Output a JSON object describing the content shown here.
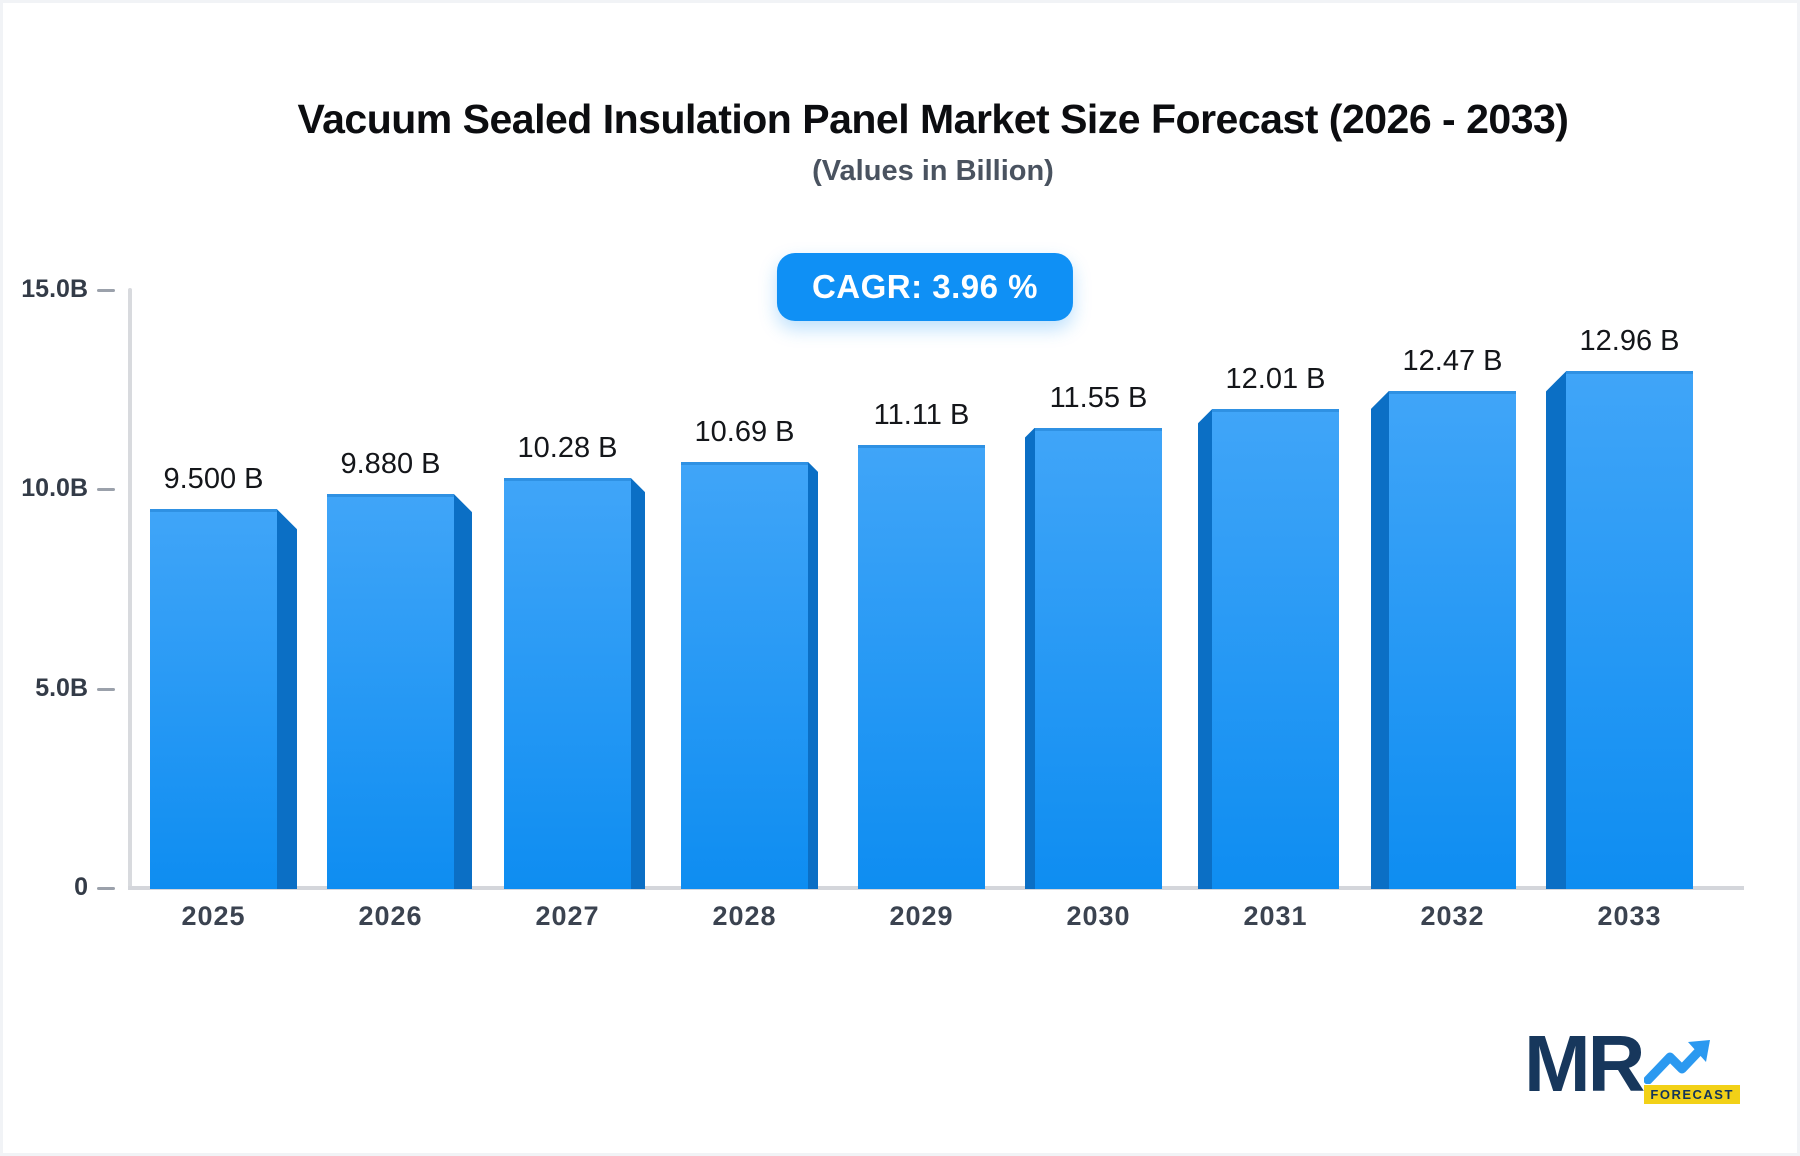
{
  "header": {
    "title": "Vacuum Sealed Insulation Panel Market Size Forecast (2026 - 2033)",
    "subtitle": "(Values in Billion)",
    "cagr_badge": "CAGR: 3.96 %"
  },
  "chart_data": {
    "type": "bar",
    "title": "Vacuum Sealed Insulation Panel Market Size Forecast (2026 - 2033)",
    "subtitle": "(Values in Billion)",
    "cagr": "3.96 %",
    "categories": [
      "2025",
      "2026",
      "2027",
      "2028",
      "2029",
      "2030",
      "2031",
      "2032",
      "2033"
    ],
    "values": [
      9.5,
      9.88,
      10.28,
      10.69,
      11.11,
      11.55,
      12.01,
      12.47,
      12.96
    ],
    "value_labels": [
      "9.500 B",
      "9.880 B",
      "10.28 B",
      "10.69 B",
      "11.11 B",
      "11.55 B",
      "12.01 B",
      "12.47 B",
      "12.96 B"
    ],
    "unit": "Billion",
    "ytick_labels": [
      "15.0B",
      "10.0B",
      "5.0B",
      "0"
    ],
    "ytick_values": [
      15,
      10,
      5,
      0
    ],
    "ylim": [
      0,
      15
    ],
    "grid": false,
    "legend": false,
    "style": "3d-perspective-columns",
    "colors": {
      "accent": "#0f90f5",
      "bar_top": "#40a5f8",
      "bar_bottom": "#0e8df1",
      "bar_side": "#0b6fc5",
      "axis": "#d8dade",
      "tick": "#9ba1ab",
      "label": "#14161a"
    }
  },
  "logo": {
    "text": "MR",
    "caption": "FORECAST",
    "colors": {
      "navy": "#17375c",
      "yellow": "#f2d117",
      "arrow_blue": "#2b99f0"
    }
  }
}
